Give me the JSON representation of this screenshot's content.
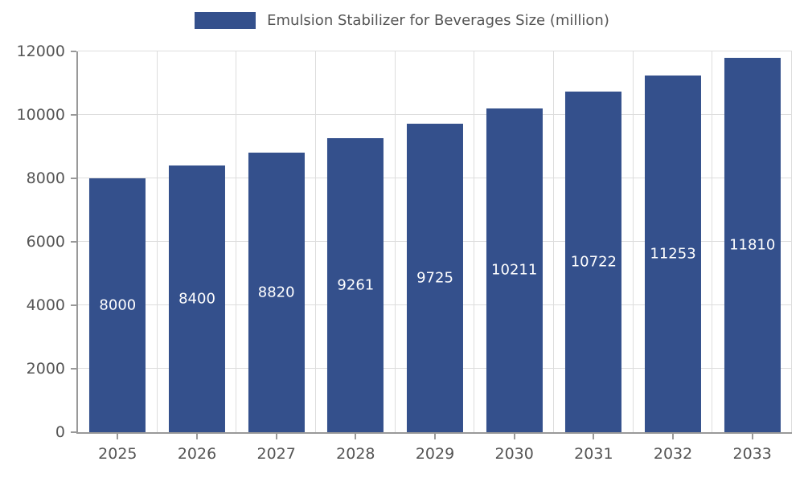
{
  "legend": {
    "label": "Emulsion Stabilizer for Beverages Size (million)"
  },
  "chart_data": {
    "type": "bar",
    "title": "Emulsion Stabilizer for Beverages Size (million)",
    "categories": [
      "2025",
      "2026",
      "2027",
      "2028",
      "2029",
      "2030",
      "2031",
      "2032",
      "2033"
    ],
    "values": [
      8000,
      8400,
      8820,
      9261,
      9725,
      10211,
      10722,
      11253,
      11810
    ],
    "xlabel": "",
    "ylabel": "",
    "ylim": [
      0,
      12000
    ],
    "yticks": [
      0,
      2000,
      4000,
      6000,
      8000,
      10000,
      12000
    ],
    "grid": true,
    "legend_position": "top",
    "bar_color": "#34508C",
    "value_label_color": "#ffffff",
    "axis_color": "#999999",
    "grid_color": "#dddddd",
    "tick_text_color": "#555555"
  }
}
